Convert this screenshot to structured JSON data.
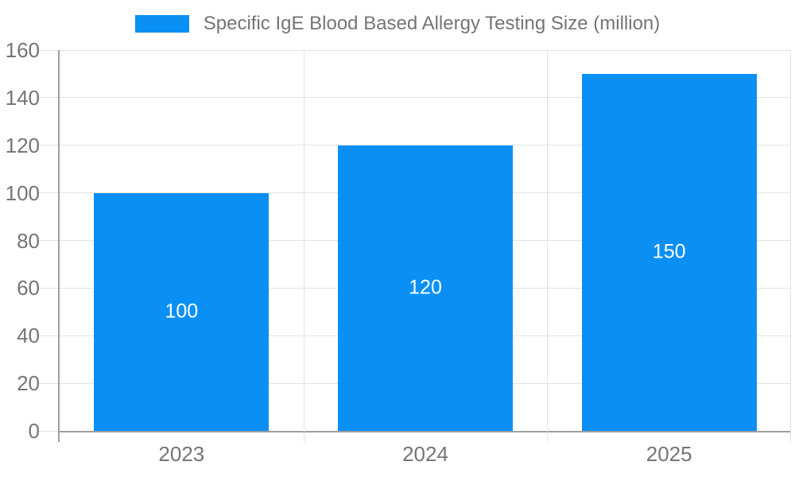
{
  "chart_data": {
    "type": "bar",
    "title": "Specific IgE Blood Based Allergy Testing Size (million)",
    "legend_position": "top",
    "categories": [
      "2023",
      "2024",
      "2025"
    ],
    "values": [
      100,
      120,
      150
    ],
    "bar_value_labels": [
      "100",
      "120",
      "150"
    ],
    "xlabel": "",
    "ylabel": "",
    "ylim": [
      0,
      160
    ],
    "yticks": [
      0,
      20,
      40,
      60,
      80,
      100,
      120,
      140,
      160
    ],
    "grid": true,
    "colors": {
      "bar": "#0a90f5",
      "gridline": "#e2e2e2",
      "axis": "#9e9e9e",
      "text": "#757575",
      "bar_label": "#ffffff",
      "background": "#ffffff"
    }
  }
}
